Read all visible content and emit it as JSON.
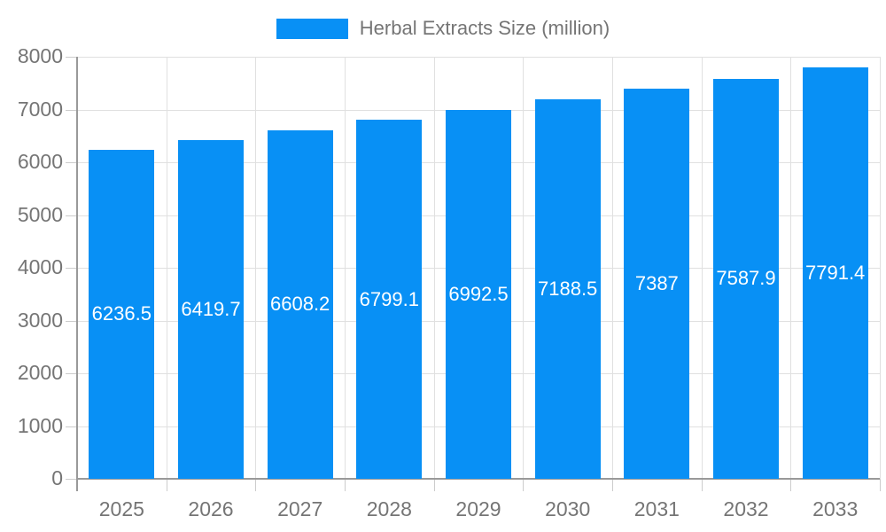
{
  "chart_data": {
    "type": "bar",
    "title": "Herbal Extracts Size (million)",
    "legend": [
      "Herbal Extracts Size (million)"
    ],
    "legend_position": "top-center",
    "categories": [
      "2025",
      "2026",
      "2027",
      "2028",
      "2029",
      "2030",
      "2031",
      "2032",
      "2033"
    ],
    "series": [
      {
        "name": "Herbal Extracts Size (million)",
        "values": [
          6236.5,
          6419.7,
          6608.2,
          6799.1,
          6992.5,
          7188.5,
          7387,
          7587.9,
          7791.4
        ]
      }
    ],
    "value_labels": [
      "6236.5",
      "6419.7",
      "6608.2",
      "6799.1",
      "6992.5",
      "7188.5",
      "7387",
      "7587.9",
      "7791.4"
    ],
    "xlabel": "",
    "ylabel": "",
    "ylim": [
      0,
      8000
    ],
    "y_ticks": [
      0,
      1000,
      2000,
      3000,
      4000,
      5000,
      6000,
      7000,
      8000
    ],
    "grid": true,
    "colors": {
      "bar": "#0890f5",
      "value_label": "#ffffff",
      "axis_text": "#757575",
      "gridline": "#e0e0e0",
      "tick": "#cccccc",
      "axis_line": "#999999",
      "background": "#ffffff"
    }
  }
}
